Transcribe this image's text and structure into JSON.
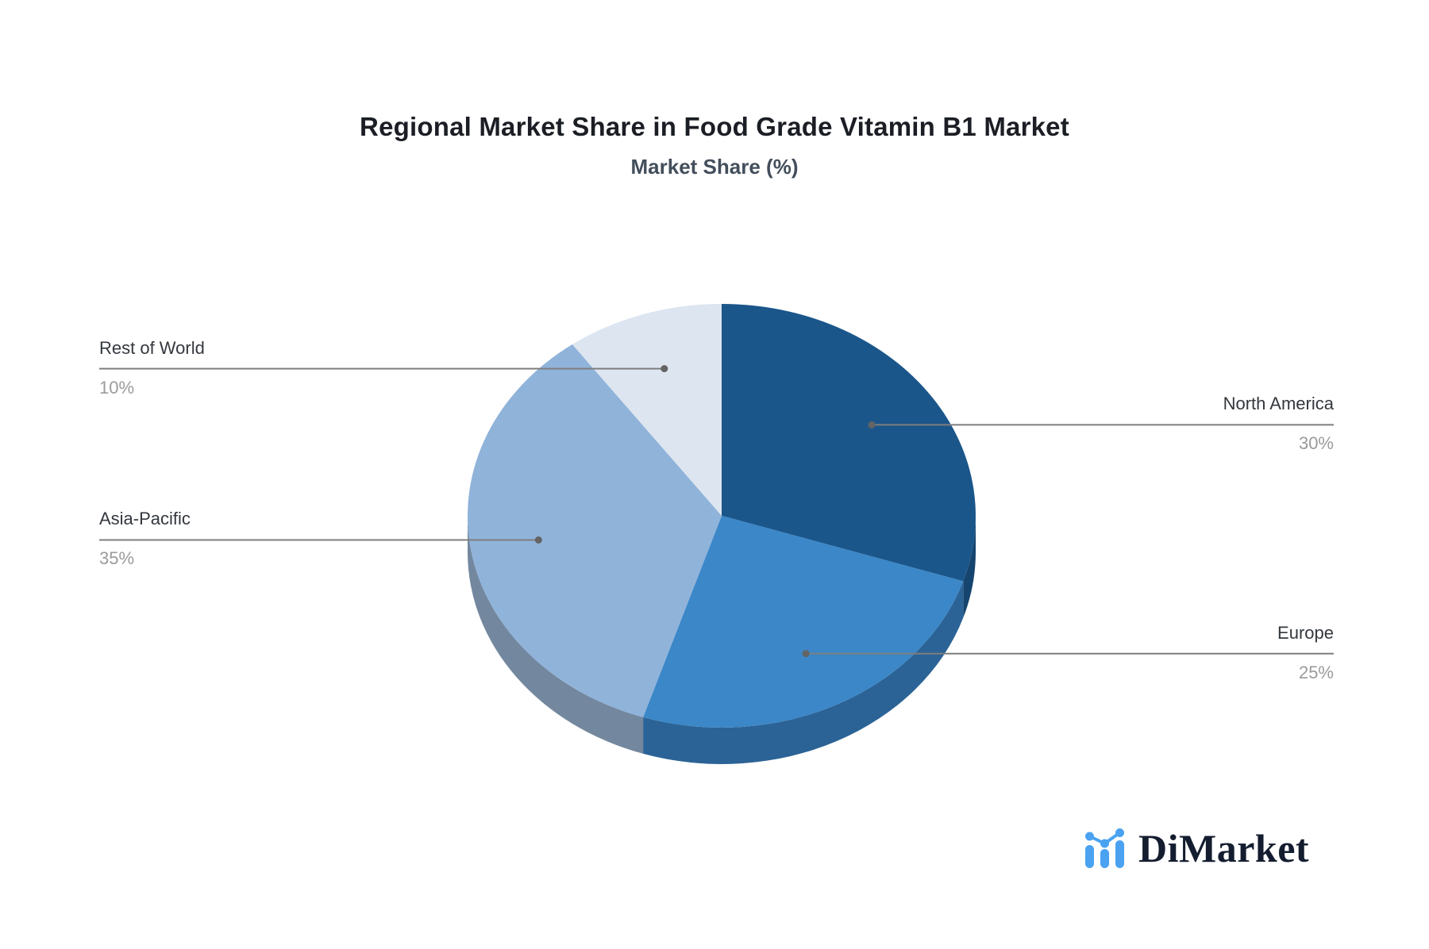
{
  "page": {
    "background": "#FFFFFF"
  },
  "chart_data": {
    "type": "pie",
    "style": "3d",
    "title": "Regional Market Share in Food Grade Vitamin B1 Market",
    "subtitle": "Market Share (%)",
    "unit": "%",
    "rotation": "clockwise-from-12-oclock",
    "legend_position": "none",
    "grid": false,
    "slices": [
      {
        "label": "North America",
        "value": 30,
        "pct_label": "30%",
        "color": "#1B568B",
        "side_color": "#15446E"
      },
      {
        "label": "Europe",
        "value": 25,
        "pct_label": "25%",
        "color": "#3B87C8",
        "side_color": "#2B6396"
      },
      {
        "label": "Asia-Pacific",
        "value": 35,
        "pct_label": "35%",
        "color": "#90B3DA",
        "side_color": "#73889F"
      },
      {
        "label": "Rest of World",
        "value": 10,
        "pct_label": "10%",
        "color": "#DCE5F0",
        "side_color": "#ABB8C8"
      }
    ],
    "connector_color": "#7E7E7E",
    "connector_dot_color": "#646464",
    "label_name_color": "#33383E",
    "label_pct_color": "#9B9B9B"
  },
  "logo": {
    "brand": "DiMarket",
    "icon": "bar-line-chart-icon",
    "icon_color": "#4AA2F1",
    "text_color": "#141D2F"
  }
}
